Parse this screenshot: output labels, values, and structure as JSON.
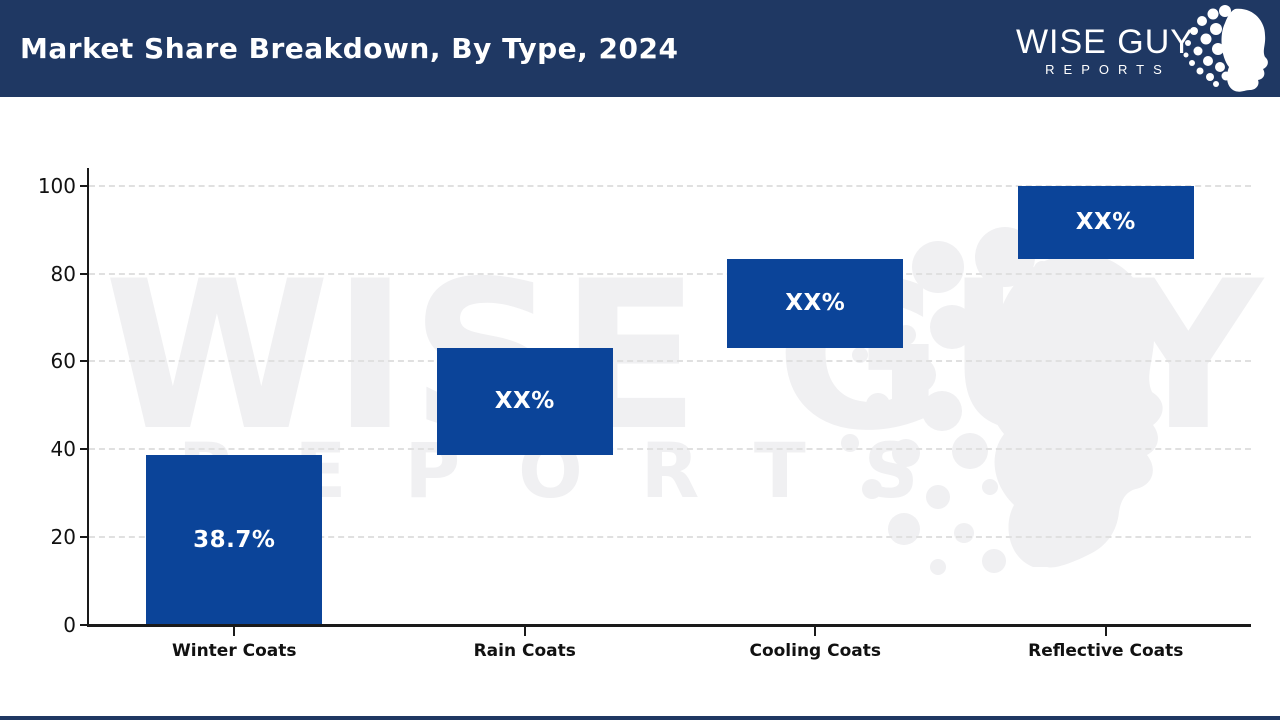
{
  "header": {
    "title": "Market Share Breakdown, By Type, 2024",
    "bg_color": "#1F3863",
    "logo": {
      "wordmark": "WISE GUY",
      "subtext": "REPORTS"
    }
  },
  "watermark": {
    "line1": "WISE GUY",
    "line2": "REPORTS"
  },
  "chart_data": {
    "type": "bar",
    "subtype": "waterfall",
    "title": "Market Share Breakdown, By Type, 2024",
    "categories": [
      "Winter Coats",
      "Rain Coats",
      "Cooling Coats",
      "Reflective Coats"
    ],
    "segments": [
      {
        "category": "Winter Coats",
        "start": 0,
        "end": 38.7,
        "label": "38.7%"
      },
      {
        "category": "Rain Coats",
        "start": 38.7,
        "end": 63.1,
        "label": "XX%"
      },
      {
        "category": "Cooling Coats",
        "start": 63.1,
        "end": 83.4,
        "label": "XX%"
      },
      {
        "category": "Reflective Coats",
        "start": 83.4,
        "end": 100,
        "label": "XX%"
      }
    ],
    "xlabel": "",
    "ylabel": "",
    "ylim": [
      0,
      104
    ],
    "yticks": [
      0,
      20,
      40,
      60,
      80,
      100
    ],
    "grid": "horizontal-dashed",
    "legend": "none",
    "bar_color": "#0B4499",
    "bar_label_color": "#ffffff",
    "axis_color": "#1a1a1a",
    "gridline_color": "#e0e0e0"
  }
}
